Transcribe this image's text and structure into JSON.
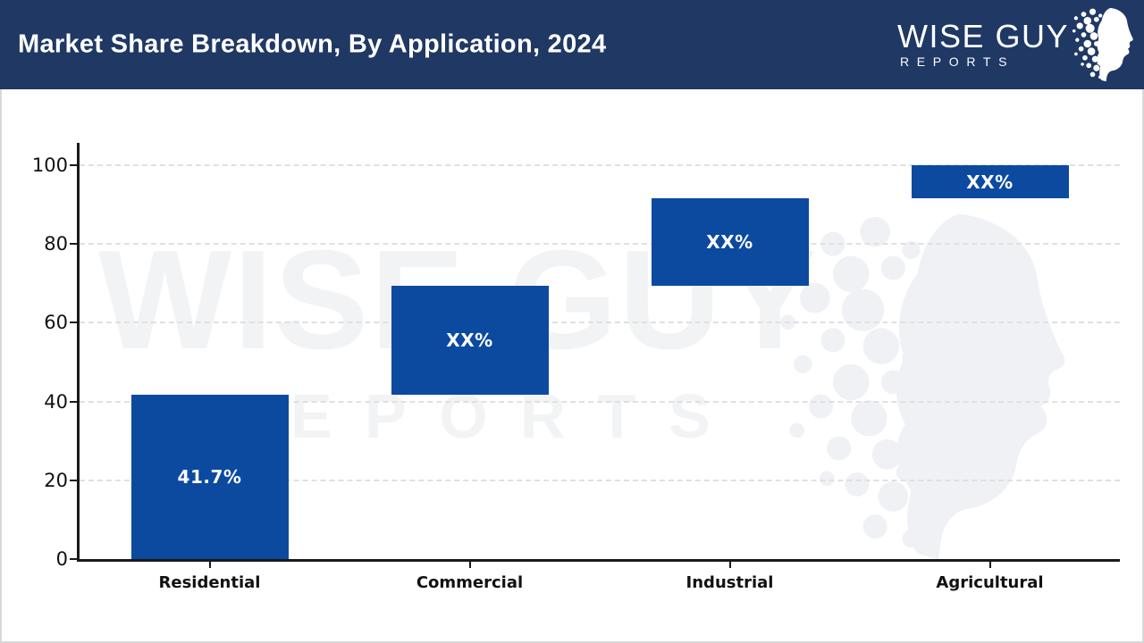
{
  "header": {
    "title": "Market Share Breakdown, By Application, 2024",
    "logo": {
      "line1": "WISE GUY",
      "line2": "REPORTS"
    }
  },
  "watermark": {
    "line1": "WISE GUY",
    "line2": "REPORTS"
  },
  "chart_data": {
    "type": "bar",
    "subtype": "waterfall",
    "title": "Market Share Breakdown, By Application, 2024",
    "categories": [
      "Residential",
      "Commercial",
      "Industrial",
      "Agricultural"
    ],
    "series": [
      {
        "name": "Market Share (%)",
        "segments": [
          {
            "category": "Residential",
            "start": 0,
            "end": 41.7,
            "value": 41.7,
            "label": "41.7%"
          },
          {
            "category": "Commercial",
            "start": 41.7,
            "end": 69.3,
            "value": 27.6,
            "label": "XX%"
          },
          {
            "category": "Industrial",
            "start": 69.3,
            "end": 91.5,
            "value": 22.2,
            "label": "XX%"
          },
          {
            "category": "Agricultural",
            "start": 91.5,
            "end": 100,
            "value": 8.5,
            "label": "XX%"
          }
        ]
      }
    ],
    "ylim": [
      0,
      100
    ],
    "yticks": [
      0,
      20,
      40,
      60,
      80,
      100
    ],
    "grid": true,
    "gridline_style": "dashed",
    "legend": "none",
    "bar_color": "#0c4aa0",
    "label_color": "#ffffff"
  },
  "colors": {
    "header_bg": "#1f3864",
    "bar": "#0c4aa0",
    "axis": "#1a1a1a",
    "grid": "#e0e0e0",
    "watermark": "#f2f3f5",
    "frame": "#d9d9d9"
  }
}
